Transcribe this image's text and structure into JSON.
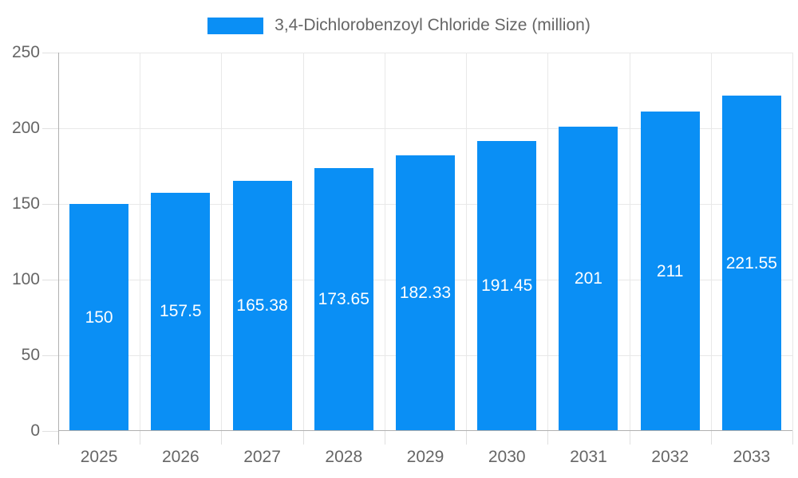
{
  "legend": {
    "label": "3,4-Dichlorobenzoyl Chloride Size (million)",
    "swatch_color": "#0a8ff5"
  },
  "chart_data": {
    "type": "bar",
    "title": "3,4-Dichlorobenzoyl Chloride Size (million)",
    "categories": [
      "2025",
      "2026",
      "2027",
      "2028",
      "2029",
      "2030",
      "2031",
      "2032",
      "2033"
    ],
    "values": [
      150,
      157.5,
      165.38,
      173.65,
      182.33,
      191.45,
      201,
      211,
      221.55
    ],
    "value_labels": [
      "150",
      "157.5",
      "165.38",
      "173.65",
      "182.33",
      "191.45",
      "201",
      "211",
      "221.55"
    ],
    "xlabel": "",
    "ylabel": "",
    "ylim": [
      0,
      250
    ],
    "yticks": [
      0,
      50,
      100,
      150,
      200,
      250
    ],
    "grid": true,
    "legend_position": "top",
    "colors": {
      "bar": "#0a8ff5",
      "bar_label": "#ffffff",
      "axis_line": "#b0b0b0",
      "gridline": "#e8e8e8",
      "tick": "#e0e0e0",
      "text": "#666666",
      "background": "#ffffff"
    }
  }
}
